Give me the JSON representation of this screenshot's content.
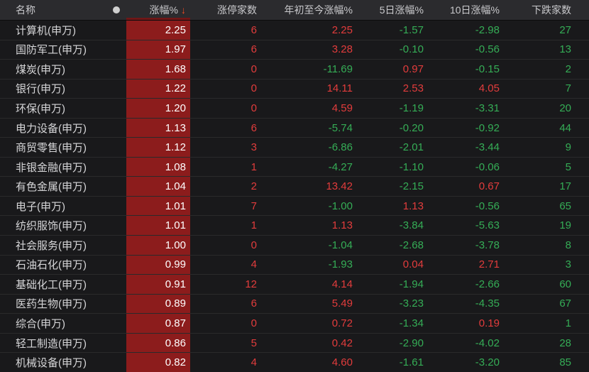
{
  "table": {
    "header": {
      "name": "名称",
      "marker_dot": "●",
      "change": "涨幅%",
      "sort_arrow": "↓",
      "limit_up": "涨停家数",
      "ytd": "年初至今涨幅%",
      "d5": "5日涨幅%",
      "d10": "10日涨幅%",
      "decliners": "下跌家数"
    },
    "rows": [
      {
        "name": "计算机(申万)",
        "change": "2.25",
        "limit_up": "6",
        "ytd": "2.25",
        "d5": "-1.57",
        "d10": "-2.98",
        "decliners": "27"
      },
      {
        "name": "国防军工(申万)",
        "change": "1.97",
        "limit_up": "6",
        "ytd": "3.28",
        "d5": "-0.10",
        "d10": "-0.56",
        "decliners": "13"
      },
      {
        "name": "煤炭(申万)",
        "change": "1.68",
        "limit_up": "0",
        "ytd": "-11.69",
        "d5": "0.97",
        "d10": "-0.15",
        "decliners": "2"
      },
      {
        "name": "银行(申万)",
        "change": "1.22",
        "limit_up": "0",
        "ytd": "14.11",
        "d5": "2.53",
        "d10": "4.05",
        "decliners": "7"
      },
      {
        "name": "环保(申万)",
        "change": "1.20",
        "limit_up": "0",
        "ytd": "4.59",
        "d5": "-1.19",
        "d10": "-3.31",
        "decliners": "20"
      },
      {
        "name": "电力设备(申万)",
        "change": "1.13",
        "limit_up": "6",
        "ytd": "-5.74",
        "d5": "-0.20",
        "d10": "-0.92",
        "decliners": "44"
      },
      {
        "name": "商贸零售(申万)",
        "change": "1.12",
        "limit_up": "3",
        "ytd": "-6.86",
        "d5": "-2.01",
        "d10": "-3.44",
        "decliners": "9"
      },
      {
        "name": "非银金融(申万)",
        "change": "1.08",
        "limit_up": "1",
        "ytd": "-4.27",
        "d5": "-1.10",
        "d10": "-0.06",
        "decliners": "5"
      },
      {
        "name": "有色金属(申万)",
        "change": "1.04",
        "limit_up": "2",
        "ytd": "13.42",
        "d5": "-2.15",
        "d10": "0.67",
        "decliners": "17"
      },
      {
        "name": "电子(申万)",
        "change": "1.01",
        "limit_up": "7",
        "ytd": "-1.00",
        "d5": "1.13",
        "d10": "-0.56",
        "decliners": "65"
      },
      {
        "name": "纺织服饰(申万)",
        "change": "1.01",
        "limit_up": "1",
        "ytd": "1.13",
        "d5": "-3.84",
        "d10": "-5.63",
        "decliners": "19"
      },
      {
        "name": "社会服务(申万)",
        "change": "1.00",
        "limit_up": "0",
        "ytd": "-1.04",
        "d5": "-2.68",
        "d10": "-3.78",
        "decliners": "8"
      },
      {
        "name": "石油石化(申万)",
        "change": "0.99",
        "limit_up": "4",
        "ytd": "-1.93",
        "d5": "0.04",
        "d10": "2.71",
        "decliners": "3"
      },
      {
        "name": "基础化工(申万)",
        "change": "0.91",
        "limit_up": "12",
        "ytd": "4.14",
        "d5": "-1.94",
        "d10": "-2.66",
        "decliners": "60"
      },
      {
        "name": "医药生物(申万)",
        "change": "0.89",
        "limit_up": "6",
        "ytd": "5.49",
        "d5": "-3.23",
        "d10": "-4.35",
        "decliners": "67"
      },
      {
        "name": "综合(申万)",
        "change": "0.87",
        "limit_up": "0",
        "ytd": "0.72",
        "d5": "-1.34",
        "d10": "0.19",
        "decliners": "1"
      },
      {
        "name": "轻工制造(申万)",
        "change": "0.86",
        "limit_up": "5",
        "ytd": "0.42",
        "d5": "-2.90",
        "d10": "-4.02",
        "decliners": "28"
      },
      {
        "name": "机械设备(申万)",
        "change": "0.82",
        "limit_up": "4",
        "ytd": "4.60",
        "d5": "-1.61",
        "d10": "-3.20",
        "decliners": "85"
      }
    ]
  },
  "colors": {
    "up_red": "#e23c3c",
    "down_green": "#35ad56",
    "change_column_bg": "#8c1c1c",
    "change_header_underline": "#701717",
    "sort_arrow": "#f04a22",
    "header_bg": "#2b2b2e",
    "page_bg": "#18181a"
  }
}
